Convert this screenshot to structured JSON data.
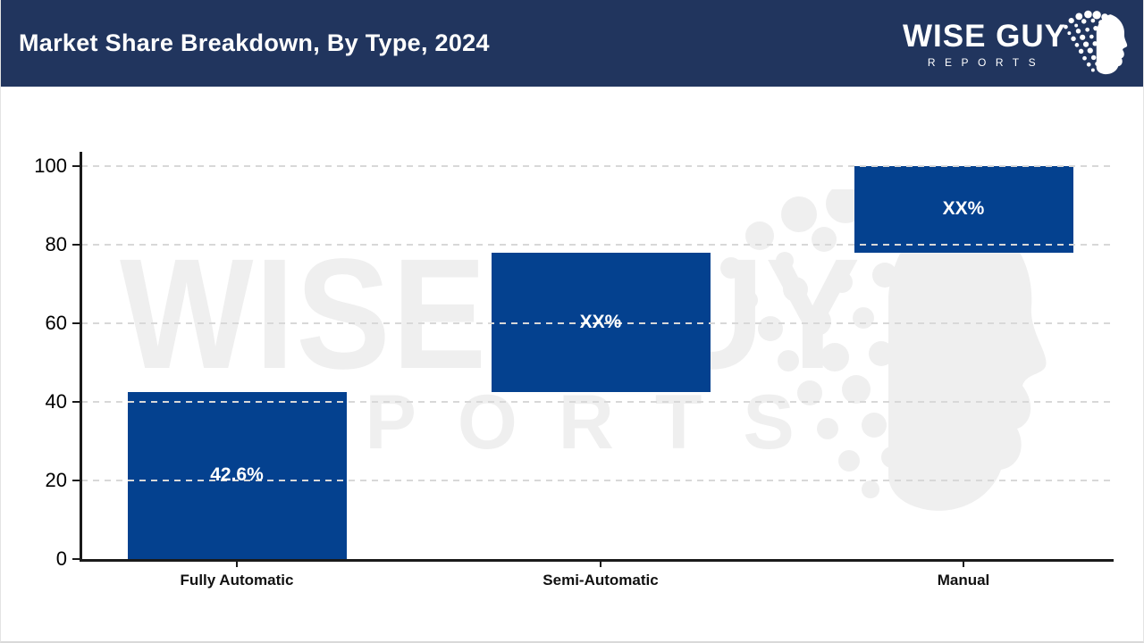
{
  "header": {
    "title": "Market Share Breakdown, By Type, 2024",
    "logo": {
      "line1": "WISE GUY",
      "line2": "REPORTS"
    }
  },
  "watermark": {
    "line1": "WISE GUY",
    "line2": "REPORTS"
  },
  "chart_data": {
    "type": "bar",
    "subtype": "floating-waterfall",
    "title": "Market Share Breakdown, By Type, 2024",
    "categories": [
      "Fully Automatic",
      "Semi-Automatic",
      "Manual"
    ],
    "bars": [
      {
        "category": "Fully Automatic",
        "start": 0,
        "end": 42.6,
        "label": "42.6%"
      },
      {
        "category": "Semi-Automatic",
        "start": 42.6,
        "end": 78,
        "label": "XX%"
      },
      {
        "category": "Manual",
        "start": 78,
        "end": 100,
        "label": "XX%"
      }
    ],
    "xlabel": "",
    "ylabel": "",
    "ylim": [
      0,
      100
    ],
    "yticks": [
      0,
      20,
      40,
      60,
      80,
      100
    ],
    "grid": "horizontal-dashed",
    "legend": "none",
    "bar_color": "#04418f",
    "label_color": "#ffffff",
    "axis_color": "#1a1a1a",
    "grid_color": "#d8d8d8",
    "header_color": "#21355e"
  }
}
